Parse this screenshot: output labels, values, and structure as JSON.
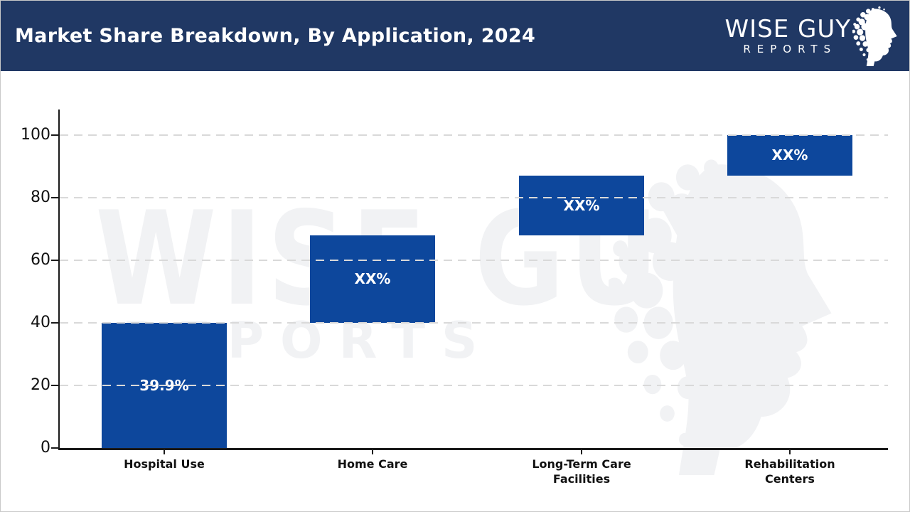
{
  "header": {
    "title": "Market Share Breakdown, By Application, 2024",
    "brand": {
      "name": "WISE GUY",
      "sub": "REPORTS"
    }
  },
  "watermark": {
    "line1": "WISE GUY",
    "line2": "REPORTS"
  },
  "chart_data": {
    "type": "bar",
    "subtype": "floating-waterfall",
    "title": "Market Share Breakdown, By Application, 2024",
    "categories": [
      "Hospital Use",
      "Home Care",
      "Long-Term Care Facilities",
      "Rehabilitation Centers"
    ],
    "x_label_lines": [
      [
        "Hospital Use"
      ],
      [
        "Home Care"
      ],
      [
        "Long-Term Care",
        "Facilities"
      ],
      [
        "Rehabilitation",
        "Centers"
      ]
    ],
    "segments": [
      {
        "category": "Hospital Use",
        "start": 0,
        "end": 39.9,
        "label": "39.9%"
      },
      {
        "category": "Home Care",
        "start": 39.9,
        "end": 68,
        "label": "XX%"
      },
      {
        "category": "Long-Term Care Facilities",
        "start": 68,
        "end": 87,
        "label": "XX%"
      },
      {
        "category": "Rehabilitation Centers",
        "start": 87,
        "end": 100,
        "label": "XX%"
      }
    ],
    "ylim": [
      0,
      100
    ],
    "yticks": [
      0,
      20,
      40,
      60,
      80,
      100
    ],
    "xlabel": "",
    "ylabel": "",
    "grid": "horizontal-dashed",
    "legend": "none",
    "colors": {
      "bar": "#0d479c",
      "bar_label": "#ffffff",
      "grid": "#d9d9d9",
      "axis": "#1a1a1a",
      "header_bg": "#203864",
      "watermark": "#f1f2f4"
    }
  }
}
